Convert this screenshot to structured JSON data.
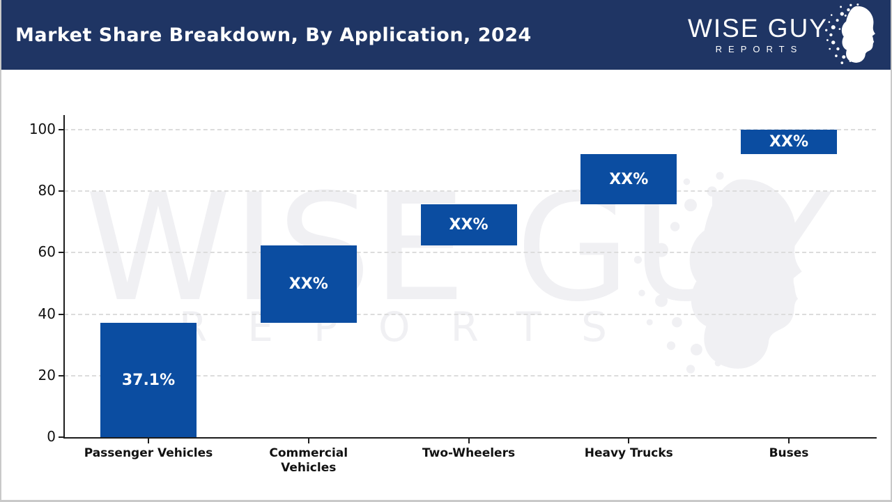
{
  "header": {
    "title": "Market Share Breakdown, By Application, 2024",
    "logo": {
      "line1": "WISE GUY",
      "line2": "REPORTS"
    }
  },
  "watermark": {
    "line1": "WISE GUY",
    "line2": "REPORTS"
  },
  "chart_data": {
    "type": "bar",
    "subtype": "waterfall",
    "title": "Market Share Breakdown, By Application, 2024",
    "categories": [
      "Passenger Vehicles",
      "Commercial\nVehicles",
      "Two-Wheelers",
      "Heavy Trucks",
      "Buses"
    ],
    "segments": [
      {
        "category": "Passenger Vehicles",
        "start": 0,
        "end": 37.1,
        "size": 37.1,
        "label": "37.1%"
      },
      {
        "category": "Commercial Vehicles",
        "start": 37.1,
        "end": 62.3,
        "size": 25.2,
        "label": "XX%"
      },
      {
        "category": "Two-Wheelers",
        "start": 62.3,
        "end": 75.7,
        "size": 13.4,
        "label": "XX%"
      },
      {
        "category": "Heavy Trucks",
        "start": 75.7,
        "end": 92.0,
        "size": 16.3,
        "label": "XX%"
      },
      {
        "category": "Buses",
        "start": 92.0,
        "end": 100.0,
        "size": 8.0,
        "label": "XX%"
      }
    ],
    "xlabel": "",
    "ylabel": "",
    "yticks": [
      0,
      20,
      40,
      60,
      80,
      100
    ],
    "ylim": [
      0,
      105
    ],
    "grid": "dashed-horizontal",
    "legend": "none",
    "bar_color": "#0b4da1",
    "bar_label_color": "#ffffff",
    "axis_color": "#1c1c1c",
    "grid_color": "#dcdcdc",
    "header_color": "#1f3564"
  }
}
